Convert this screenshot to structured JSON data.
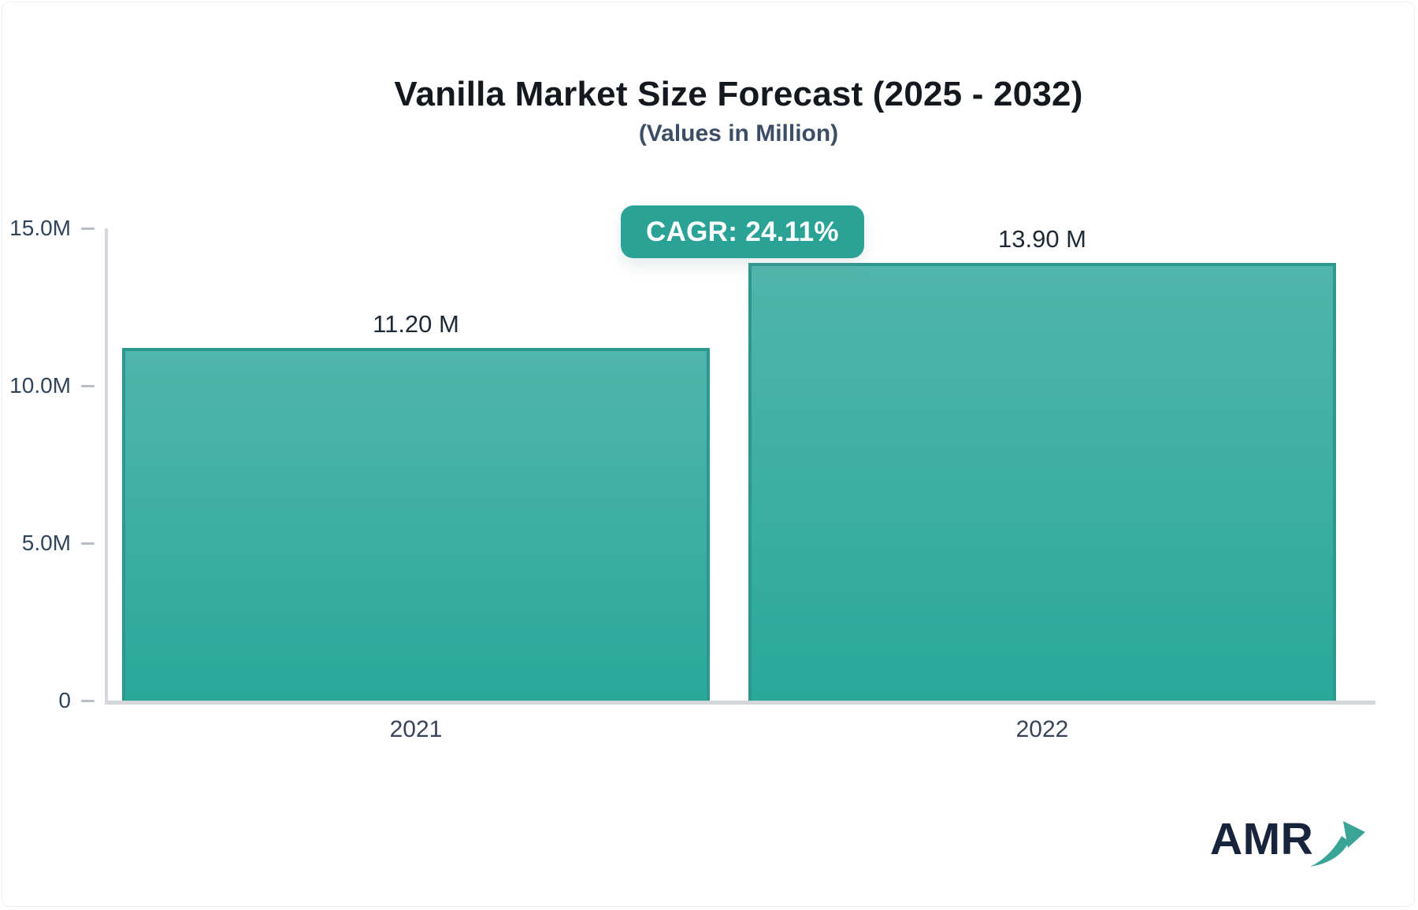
{
  "header": {
    "title": "Vanilla Market Size Forecast (2025 - 2032)",
    "subtitle": "(Values in Million)"
  },
  "cagr_badge": {
    "label": "CAGR: 24.11%"
  },
  "chart_data": {
    "type": "bar",
    "title": "Vanilla Market Size Forecast (2025 - 2032)",
    "subtitle": "(Values in Million)",
    "unit": "Million",
    "cagr_percent": 24.11,
    "categories": [
      "2021",
      "2022"
    ],
    "values": [
      11.2,
      13.9
    ],
    "value_labels": [
      "11.20 M",
      "13.90 M"
    ],
    "xlabel": "",
    "ylabel": "",
    "ylim": [
      0,
      15
    ],
    "yticks": [
      {
        "value": 0,
        "label": "0"
      },
      {
        "value": 5,
        "label": "5.0M"
      },
      {
        "value": 10,
        "label": "10.0M"
      },
      {
        "value": 15,
        "label": "15.0M"
      }
    ],
    "grid": false,
    "legend_position": "none",
    "colors": {
      "bar_gradient_top": "#51b5ac",
      "bar_gradient_bottom": "#29a89a",
      "bar_border": "#2c988f",
      "badge_background": "#2aa296",
      "badge_text": "#ffffff",
      "axis_line": "#d5d9dd",
      "tick_text": "#31445a"
    }
  },
  "logo": {
    "text": "AMR",
    "arrow_icon": "growth-arrow-icon",
    "arrow_color": "#3aa496"
  }
}
